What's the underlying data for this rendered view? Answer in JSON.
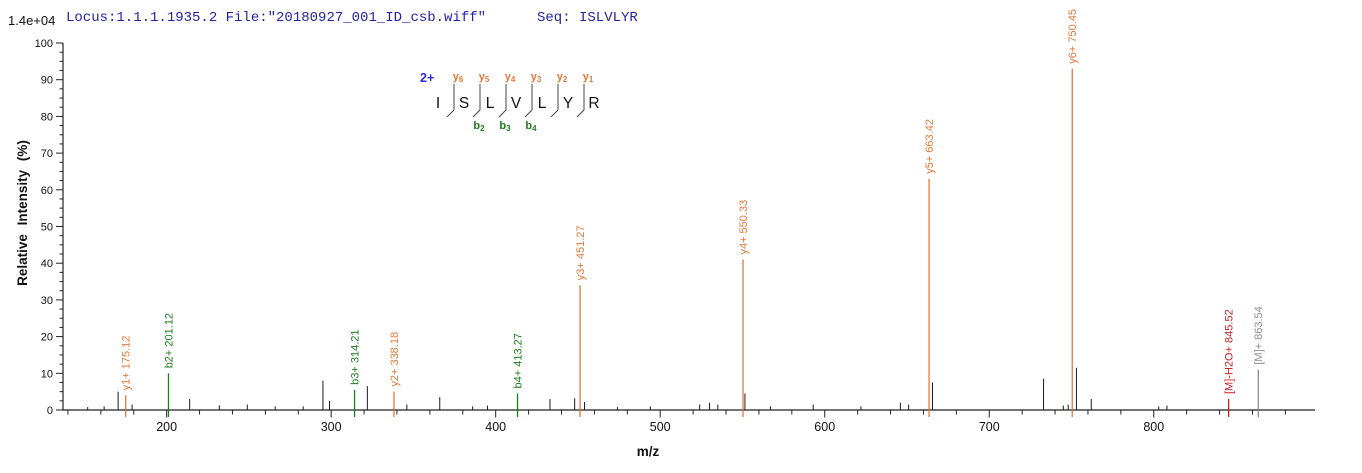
{
  "header": {
    "title": "Locus:1.1.1.1935.2 File:\"20180927_001_ID_csb.wiff\"",
    "seq": "Seq: ISLVLYR",
    "intensity_scale": "1.4e+04"
  },
  "colors": {
    "title": "#2323a7",
    "charge": "#2a2ae0",
    "axis": "#222222",
    "text": "#111111",
    "divider": "#444444",
    "y_ion": "#e0793c",
    "b_ion": "#1e7d1e",
    "precursor_loss": "#cc2222",
    "precursor": "#8f8f8f",
    "unassigned": "#1a1a1a"
  },
  "chart_data": {
    "type": "bar",
    "title": "Locus:1.1.1.1935.2 File:\"20180927_001_ID_csb.wiff\"   Seq: ISLVLYR",
    "xlabel": "m/z",
    "ylabel": "Relative Intensity (%)",
    "intensity_scale": "1.4e+04",
    "xlim": [
      137,
      898
    ],
    "ylim": [
      0,
      100
    ],
    "x_major_ticks": [
      200,
      300,
      400,
      500,
      600,
      700,
      800
    ],
    "x_minor_step": 20,
    "y_major_step": 10,
    "y_minor_step": 2.5,
    "grid": false,
    "legend": "none",
    "precursor_charge": "2+",
    "peptide": [
      "I",
      "S",
      "L",
      "V",
      "L",
      "Y",
      "R"
    ],
    "y_ions_above_gaps": [
      "y6",
      "y5",
      "y4",
      "y3",
      "y2",
      "y1"
    ],
    "b_ions_below_gaps": [
      {
        "gap": 1,
        "label": "b2"
      },
      {
        "gap": 2,
        "label": "b3"
      },
      {
        "gap": 3,
        "label": "b4"
      }
    ],
    "series": [
      {
        "name": "y-ions",
        "color_key": "y_ion",
        "peaks": [
          {
            "label": "y1+ 175.12",
            "mz": 175.12,
            "intensity": 4
          },
          {
            "label": "y2+ 338.18",
            "mz": 338.18,
            "intensity": 5
          },
          {
            "label": "y3+ 451.27",
            "mz": 451.27,
            "intensity": 34
          },
          {
            "label": "y4+ 550.33",
            "mz": 550.33,
            "intensity": 41
          },
          {
            "label": "y5+ 663.42",
            "mz": 663.42,
            "intensity": 63
          },
          {
            "label": "y6+ 750.45",
            "mz": 750.45,
            "intensity": 93
          }
        ]
      },
      {
        "name": "b-ions",
        "color_key": "b_ion",
        "peaks": [
          {
            "label": "b2+ 201.12",
            "mz": 201.12,
            "intensity": 10
          },
          {
            "label": "b3+ 314.21",
            "mz": 314.21,
            "intensity": 5.5
          },
          {
            "label": "b4+ 413.27",
            "mz": 413.27,
            "intensity": 4.5
          }
        ]
      },
      {
        "name": "precursor-loss",
        "color_key": "precursor_loss",
        "peaks": [
          {
            "label": "[M]-H2O+ 845.52",
            "mz": 845.52,
            "intensity": 3
          }
        ]
      },
      {
        "name": "precursor",
        "color_key": "precursor",
        "peaks": [
          {
            "label": "[M]+ 863.54",
            "mz": 863.54,
            "intensity": 11
          }
        ]
      },
      {
        "name": "unassigned",
        "color_key": "unassigned",
        "peaks": [
          {
            "mz": 152,
            "intensity": 0.8
          },
          {
            "mz": 162,
            "intensity": 1
          },
          {
            "mz": 170.5,
            "intensity": 5
          },
          {
            "mz": 179,
            "intensity": 1.5
          },
          {
            "mz": 214,
            "intensity": 3
          },
          {
            "mz": 232,
            "intensity": 1.3
          },
          {
            "mz": 249,
            "intensity": 1.5
          },
          {
            "mz": 266,
            "intensity": 1
          },
          {
            "mz": 283,
            "intensity": 1
          },
          {
            "mz": 295,
            "intensity": 8
          },
          {
            "mz": 299,
            "intensity": 2.5
          },
          {
            "mz": 322,
            "intensity": 6.5
          },
          {
            "mz": 346,
            "intensity": 1.5
          },
          {
            "mz": 366,
            "intensity": 3.5
          },
          {
            "mz": 386,
            "intensity": 1
          },
          {
            "mz": 395,
            "intensity": 1.2
          },
          {
            "mz": 433,
            "intensity": 3
          },
          {
            "mz": 448,
            "intensity": 3.2
          },
          {
            "mz": 454,
            "intensity": 2.2
          },
          {
            "mz": 474,
            "intensity": 0.8
          },
          {
            "mz": 494,
            "intensity": 1
          },
          {
            "mz": 524,
            "intensity": 1.5
          },
          {
            "mz": 530,
            "intensity": 2
          },
          {
            "mz": 535,
            "intensity": 1.5
          },
          {
            "mz": 551.5,
            "intensity": 4.5
          },
          {
            "mz": 567,
            "intensity": 1
          },
          {
            "mz": 593,
            "intensity": 1.5
          },
          {
            "mz": 622,
            "intensity": 1
          },
          {
            "mz": 646,
            "intensity": 2
          },
          {
            "mz": 651,
            "intensity": 1.5
          },
          {
            "mz": 665.5,
            "intensity": 7.5
          },
          {
            "mz": 733,
            "intensity": 8.5
          },
          {
            "mz": 745,
            "intensity": 1.2
          },
          {
            "mz": 748,
            "intensity": 1.5
          },
          {
            "mz": 753,
            "intensity": 11.5
          },
          {
            "mz": 762,
            "intensity": 3
          },
          {
            "mz": 803,
            "intensity": 1
          },
          {
            "mz": 808,
            "intensity": 1.2
          }
        ]
      }
    ]
  }
}
